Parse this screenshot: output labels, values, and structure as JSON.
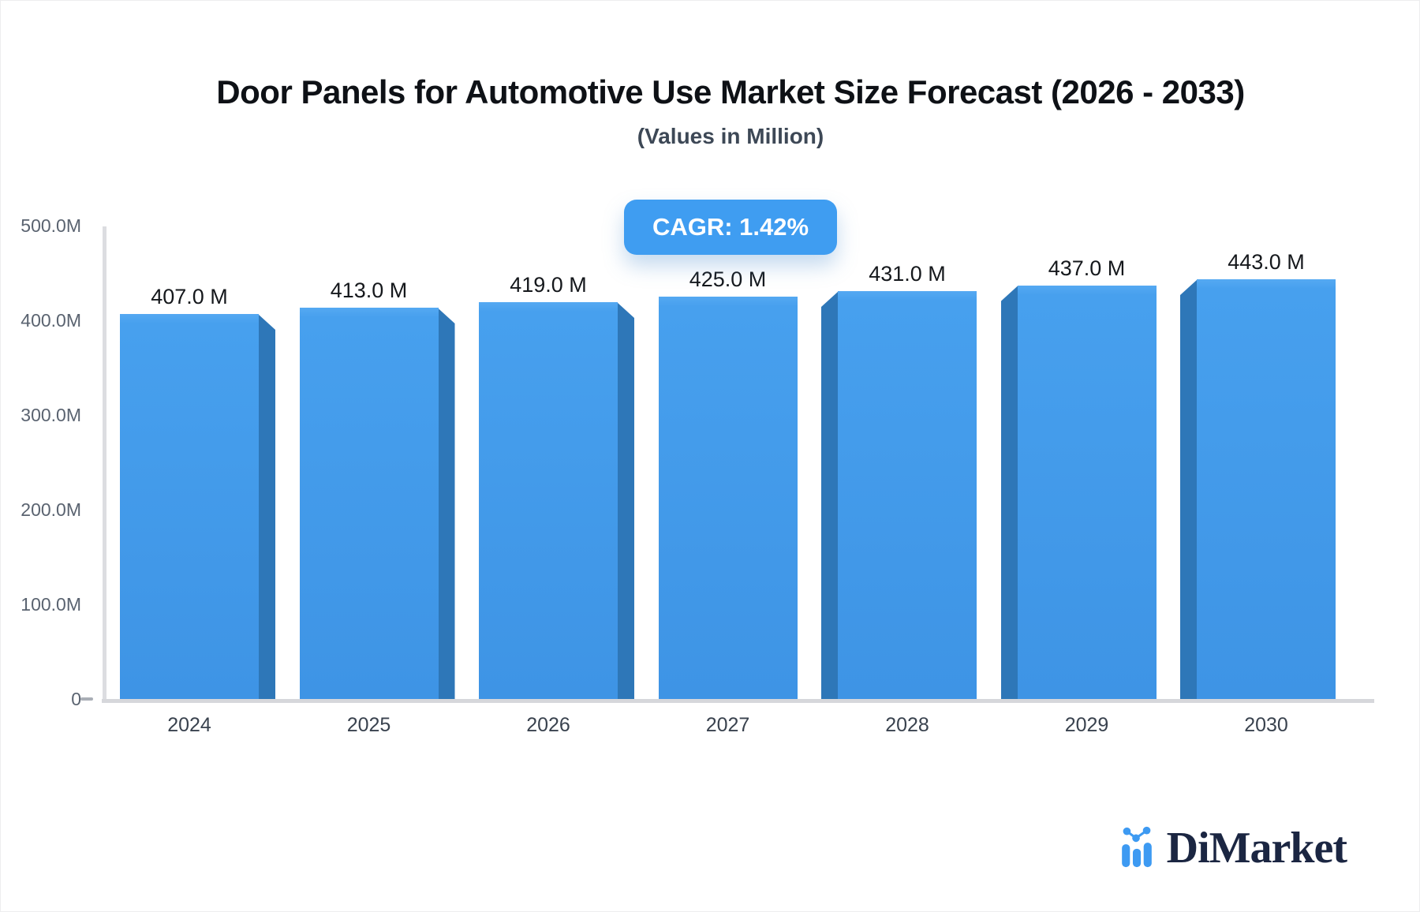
{
  "brand": {
    "name": "DiMarket",
    "icon": "bar-chart-sparkline-icon"
  },
  "colors": {
    "bar_top": "#55A9F2",
    "bar_bottom": "#3E94E5",
    "bar_side": "#2E77B8",
    "badge_bg": "#3F9DF1",
    "axis_line": "#DCDDE1",
    "baseline": "#D6D7DB",
    "title_text": "#0E1116",
    "subtitle_text": "#3D4856",
    "tick_text": "#5A6370",
    "category_text": "#39424E",
    "logo_navy": "#1B2642"
  },
  "chart_data": {
    "type": "bar",
    "style": "3d-column",
    "title": "Door Panels for Automotive Use Market Size Forecast (2026 - 2033)",
    "subtitle": "(Values in Million)",
    "cagr_label": "CAGR: 1.42%",
    "unit": "Million",
    "categories": [
      "2024",
      "2025",
      "2026",
      "2027",
      "2028",
      "2029",
      "2030"
    ],
    "values": [
      407,
      413,
      419,
      425,
      431,
      437,
      443
    ],
    "value_labels": [
      "407.0 M",
      "413.0 M",
      "419.0 M",
      "425.0 M",
      "431.0 M",
      "437.0 M",
      "443.0 M"
    ],
    "y_ticks": [
      {
        "label": "500.0M",
        "value": 500
      },
      {
        "label": "400.0M",
        "value": 400
      },
      {
        "label": "300.0M",
        "value": 300
      },
      {
        "label": "200.0M",
        "value": 200
      },
      {
        "label": "100.0M",
        "value": 100
      },
      {
        "label": "0",
        "value": 0
      }
    ],
    "ylim": [
      0,
      500
    ],
    "grid": "off",
    "legend": "none"
  }
}
